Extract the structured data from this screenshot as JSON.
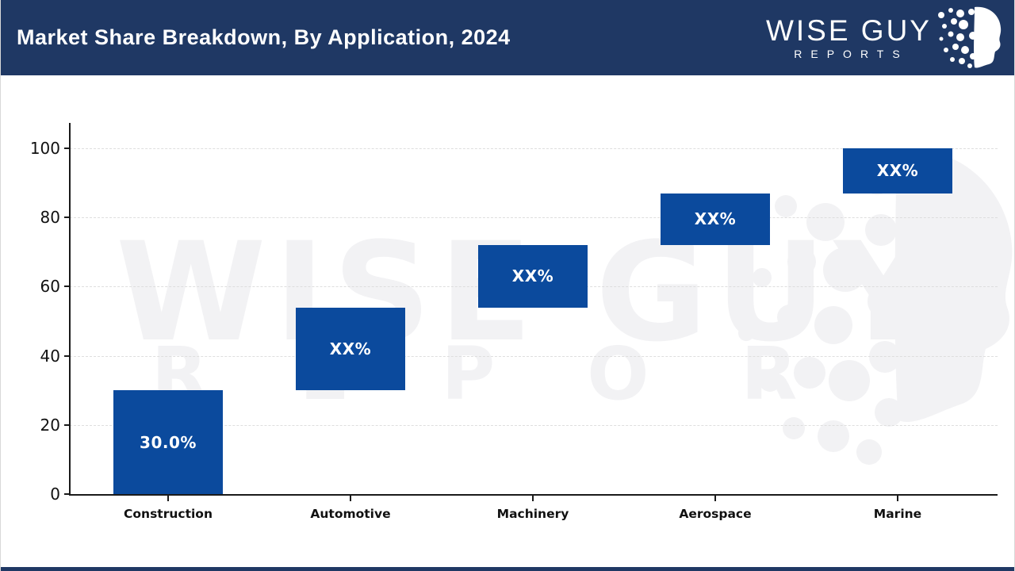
{
  "header": {
    "title": "Market Share Breakdown, By Application, 2024",
    "bg_color": "#1f3864",
    "text_color": "#ffffff",
    "logo": {
      "line1": "WISE GUY",
      "line2": "REPORTS",
      "head_icon": "dotted-head-profile"
    }
  },
  "watermark": {
    "line1": "WISE GUY",
    "line2": "REPORTS"
  },
  "chart_data": {
    "type": "bar",
    "subtype": "waterfall",
    "title": "Market Share Breakdown, By Application, 2024",
    "xlabel": "",
    "ylabel": "",
    "categories": [
      "Construction",
      "Automotive",
      "Machinery",
      "Aerospace",
      "Marine"
    ],
    "segments": [
      {
        "category": "Construction",
        "start": 0,
        "end": 30,
        "label": "30.0%"
      },
      {
        "category": "Automotive",
        "start": 30,
        "end": 54,
        "label": "XX%"
      },
      {
        "category": "Machinery",
        "start": 54,
        "end": 72,
        "label": "XX%"
      },
      {
        "category": "Aerospace",
        "start": 72,
        "end": 87,
        "label": "XX%"
      },
      {
        "category": "Marine",
        "start": 87,
        "end": 100,
        "label": "XX%"
      }
    ],
    "y_ticks": [
      0,
      20,
      40,
      60,
      80,
      100
    ],
    "ylim": [
      0,
      107
    ],
    "grid": true,
    "grid_style": "dashed",
    "legend": "none",
    "bar_color": "#0b4a9d",
    "bar_label_color": "#ffffff",
    "axis_color": "#1a1a1a"
  }
}
